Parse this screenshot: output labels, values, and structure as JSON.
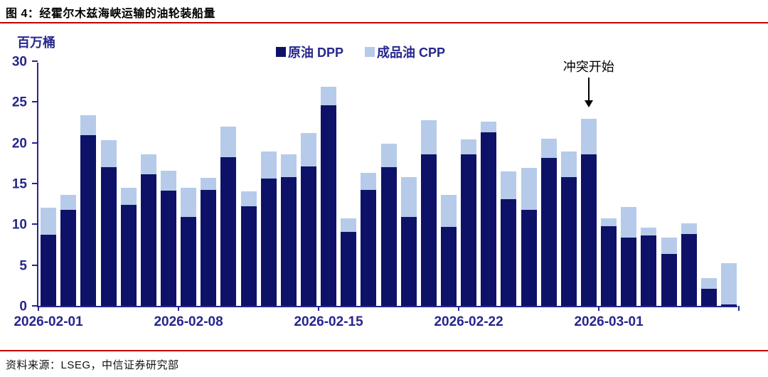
{
  "figure": {
    "title": "图 4：经霍尔木兹海峡运输的油轮装船量",
    "source": "资料来源：LSEG，中信证券研究部"
  },
  "chart_data": {
    "type": "bar",
    "stacked": true,
    "title": "经霍尔木兹海峡运输的油轮装船量",
    "unit_label": "百万桶",
    "ylabel": "百万桶",
    "xlabel": "",
    "ylim": [
      0,
      30
    ],
    "y_ticks": [
      0,
      5,
      10,
      15,
      20,
      25,
      30
    ],
    "grid": false,
    "legend_position": "top",
    "categories": [
      "2026-02-01",
      "2026-02-02",
      "2026-02-03",
      "2026-02-04",
      "2026-02-05",
      "2026-02-06",
      "2026-02-07",
      "2026-02-08",
      "2026-02-09",
      "2026-02-10",
      "2026-02-11",
      "2026-02-12",
      "2026-02-13",
      "2026-02-14",
      "2026-02-15",
      "2026-02-16",
      "2026-02-17",
      "2026-02-18",
      "2026-02-19",
      "2026-02-20",
      "2026-02-21",
      "2026-02-22",
      "2026-02-23",
      "2026-02-24",
      "2026-02-25",
      "2026-02-26",
      "2026-02-27",
      "2026-02-28",
      "2026-03-01",
      "2026-03-02",
      "2026-03-03",
      "2026-03-04",
      "2026-03-05",
      "2026-03-06",
      "2026-03-07"
    ],
    "x_tick_labels": [
      "2026-02-01",
      "2026-02-08",
      "2026-02-15",
      "2026-02-22",
      "2026-03-01"
    ],
    "x_tick_bar_indices": [
      0,
      7,
      14,
      21,
      28
    ],
    "series": [
      {
        "name": "原油 DPP",
        "color": "#0d1268",
        "values": [
          8.7,
          11.8,
          20.9,
          17.0,
          12.4,
          16.1,
          14.1,
          10.9,
          14.2,
          18.2,
          12.2,
          15.6,
          15.8,
          17.1,
          24.6,
          9.1,
          14.2,
          17.0,
          10.9,
          18.6,
          9.7,
          18.6,
          21.3,
          13.1,
          11.8,
          18.1,
          15.8,
          18.6,
          9.8,
          8.4,
          8.6,
          6.4,
          8.8,
          2.1,
          0.2
        ]
      },
      {
        "name": "成品油 CPP",
        "color": "#b5cbe9",
        "values": [
          3.3,
          1.8,
          2.5,
          3.3,
          2.1,
          2.5,
          2.5,
          3.6,
          1.5,
          3.8,
          1.8,
          3.3,
          2.8,
          4.1,
          2.3,
          1.6,
          2.1,
          2.9,
          4.9,
          4.2,
          3.9,
          1.8,
          1.3,
          3.4,
          5.1,
          2.4,
          3.1,
          4.3,
          0.9,
          3.7,
          1.0,
          2.0,
          1.3,
          1.3,
          5.0
        ]
      }
    ],
    "annotation": {
      "text": "冲突开始",
      "bar_index": 27,
      "bar_date": "2026-02-28"
    },
    "colors": {
      "axis": "#26268e",
      "rule": "#c00000",
      "dpp": "#0d1268",
      "cpp": "#b5cbe9"
    }
  }
}
